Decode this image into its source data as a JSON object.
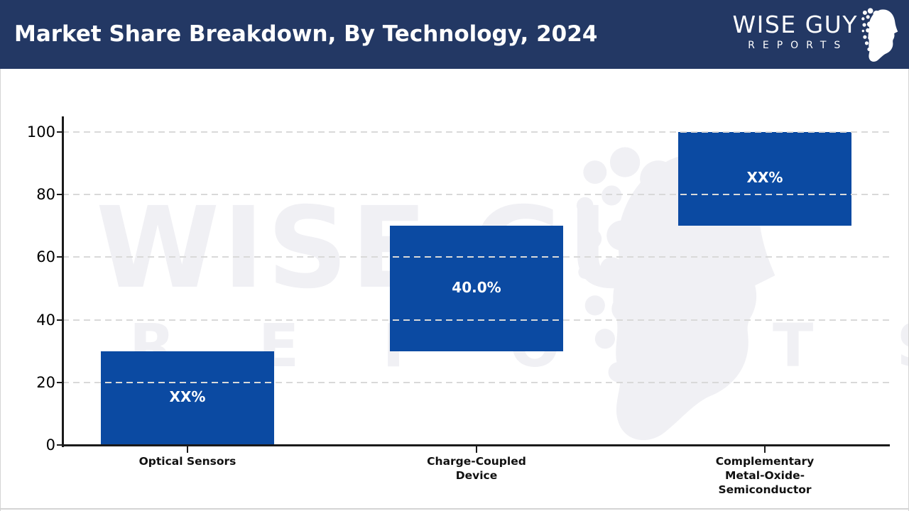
{
  "header": {
    "title": "Market Share Breakdown, By Technology, 2024",
    "bg_color": "#233864",
    "logo": {
      "line1": "WISE GUY",
      "line2": "REPORTS"
    }
  },
  "watermark": {
    "line1": "WISE GUY",
    "line2": "R E P O R T S"
  },
  "chart_data": {
    "type": "bar",
    "subtype": "floating-segment (waterfall style market-share ladder)",
    "title": "Market Share Breakdown, By Technology, 2024",
    "xlabel": "",
    "ylabel": "",
    "ylim": [
      0,
      100
    ],
    "yticks": [
      0,
      20,
      40,
      60,
      80,
      100
    ],
    "grid": "horizontal dashed, drawn over bars",
    "bar_color": "#0b4aa2",
    "grid_color": "#d9d9d9",
    "axis_color": "#1a1a1a",
    "categories": [
      {
        "label": "Optical Sensors",
        "lines": [
          "Optical Sensors"
        ]
      },
      {
        "label": "Charge-Coupled Device",
        "lines": [
          "Charge-Coupled",
          "Device"
        ]
      },
      {
        "label": "Complementary Metal-Oxide-Semiconductor",
        "lines": [
          "Complementary",
          "Metal-Oxide-",
          "Semiconductor"
        ]
      }
    ],
    "segments": [
      {
        "category": "Optical Sensors",
        "start": 0,
        "end": 30,
        "value_label": "XX%"
      },
      {
        "category": "Charge-Coupled Device",
        "start": 30,
        "end": 70,
        "value_label": "40.0%"
      },
      {
        "category": "Complementary Metal-Oxide-Semiconductor",
        "start": 70,
        "end": 100,
        "value_label": "XX%"
      }
    ]
  }
}
